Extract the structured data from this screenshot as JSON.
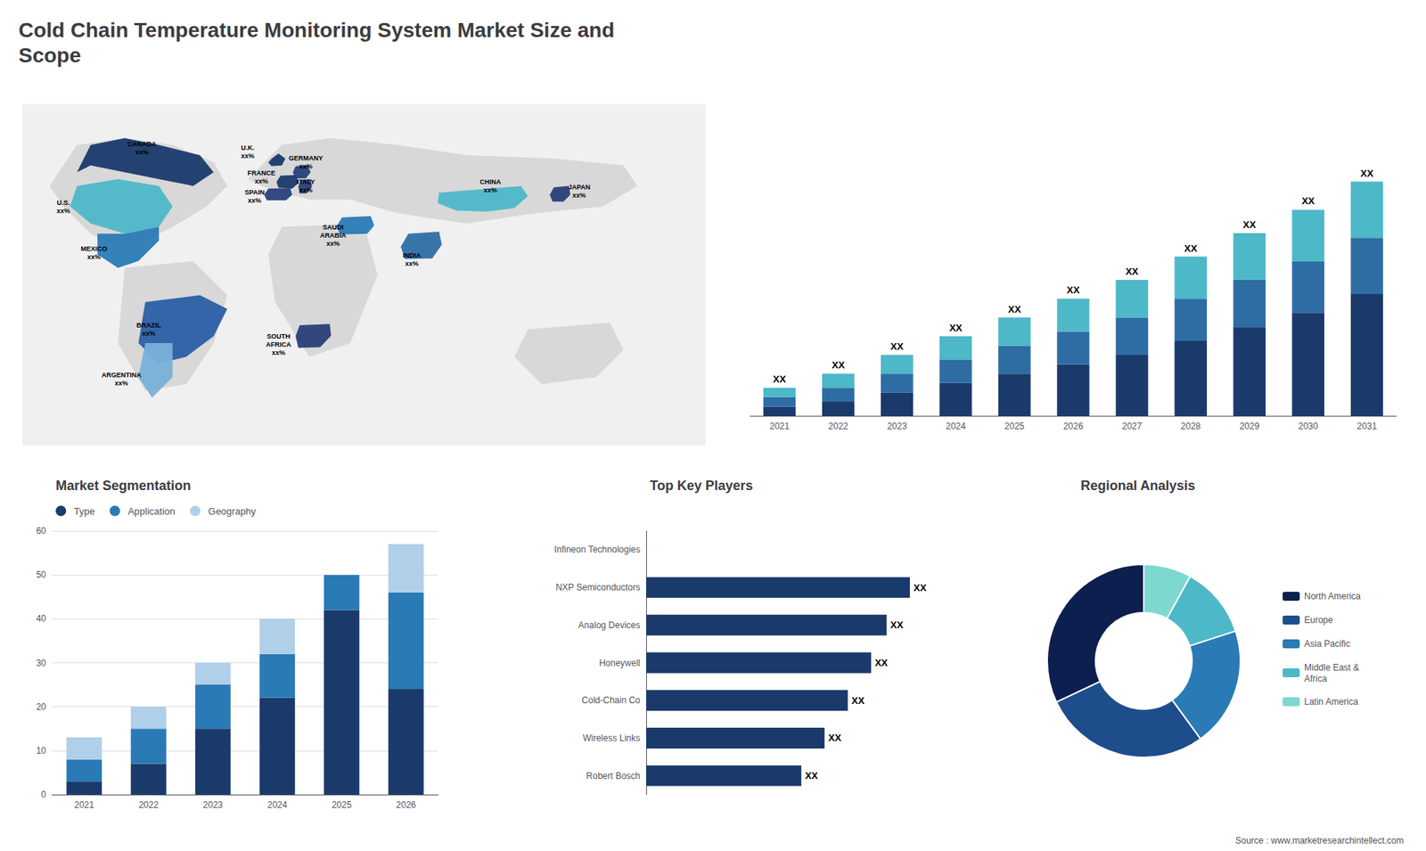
{
  "title": "Cold Chain Temperature Monitoring System Market Size and\nScope",
  "annotations": [
    "Source : www.marketresearchintellect.com"
  ],
  "chart_data": [
    {
      "type": "map",
      "annotations": [
        "CANADA\nxx%",
        "U.S.\nxx%",
        "MEXICO\nxx%",
        "BRAZIL\nxx%",
        "ARGENTINA\nxx%",
        "U.K.\nxx%",
        "FRANCE\nxx%",
        "SPAIN\nxx%",
        "GERMANY\nxx%",
        "ITALY\nxx%",
        "SAUDI\nARABIA\nxx%",
        "SOUTH\nAFRICA\nxx%",
        "INDIA\nxx%",
        "CHINA\nxx%",
        "JAPAN\nxx%"
      ],
      "colors": [
        "#1a3a6b",
        "#4db8c8",
        "#2a7ab5",
        "#2a5fa5",
        "#7ab0d8",
        "#1a3a6b",
        "#1a3a6b",
        "#2a3f7a",
        "#2a3f7a",
        "#2a3f7a",
        "#2a7ab5",
        "#2a3f7a",
        "#2e6da4",
        "#4db8c8",
        "#2a3f7a"
      ]
    },
    {
      "type": "bar",
      "stacked": true,
      "categories": [
        "2021",
        "2022",
        "2023",
        "2024",
        "2025",
        "2026",
        "2027",
        "2028",
        "2029",
        "2030",
        "2031"
      ],
      "series": [
        {
          "color": "#1a3a6b",
          "values": [
            2,
            3,
            5,
            7,
            9,
            11,
            13,
            16,
            19,
            22,
            26
          ]
        },
        {
          "color": "#2e6da4",
          "values": [
            2,
            3,
            4,
            5,
            6,
            7,
            8,
            9,
            10,
            11,
            12
          ]
        },
        {
          "color": "#4db8c8",
          "values": [
            2,
            3,
            4,
            5,
            6,
            7,
            8,
            9,
            10,
            11,
            12
          ]
        }
      ],
      "annotations": [
        "XX",
        "XX",
        "XX",
        "XX",
        "XX",
        "XX",
        "XX",
        "XX",
        "XX",
        "XX",
        "XX"
      ],
      "ylim": [
        0,
        65
      ],
      "tick_labels": "x",
      "grid": false
    },
    {
      "type": "bar",
      "title": "Market Segmentation",
      "stacked": true,
      "categories": [
        "2021",
        "2022",
        "2023",
        "2024",
        "2025",
        "2026"
      ],
      "series": [
        {
          "name": "Type",
          "color": "#1a3a6b",
          "values": [
            3,
            7,
            15,
            22,
            42,
            24
          ]
        },
        {
          "name": "Application",
          "color": "#2a7ab5",
          "values": [
            5,
            8,
            10,
            10,
            8,
            22
          ]
        },
        {
          "name": "Geography",
          "color": "#b0cfe8",
          "values": [
            5,
            5,
            5,
            8,
            0,
            11
          ]
        }
      ],
      "ylim": [
        0,
        60
      ],
      "yticks": [
        0,
        10,
        20,
        30,
        40,
        50,
        60
      ],
      "grid": true,
      "legend": "top",
      "marker": "circle"
    },
    {
      "type": "bar",
      "title": "Top Key Players",
      "orientation": "horizontal",
      "categories": [
        "Infineon Technologies",
        "NXP Semiconductors",
        "Analog Devices",
        "Honeywell",
        "Cold-Chain Co",
        "Wireless Links",
        "Robert Bosch"
      ],
      "values": [
        0,
        68,
        62,
        58,
        52,
        46,
        40
      ],
      "value_labels": [
        null,
        "XX",
        "XX",
        "XX",
        "XX",
        "XX",
        "XX"
      ],
      "data_labels": true,
      "color": "#1a3a6b",
      "xlim": [
        0,
        90
      ],
      "tick_labels": "y",
      "grid": false
    },
    {
      "type": "donut",
      "title": "Regional Analysis",
      "categories": [
        "Latin America",
        "Middle East &\nAfrica",
        "Asia Pacific",
        "Europe",
        "North America"
      ],
      "values": [
        8,
        12,
        20,
        28,
        32
      ],
      "colors": [
        "#7dd8d0",
        "#4db8c8",
        "#2a7ab5",
        "#1e4d8c",
        "#0d1f4e"
      ],
      "legend": "right"
    }
  ]
}
